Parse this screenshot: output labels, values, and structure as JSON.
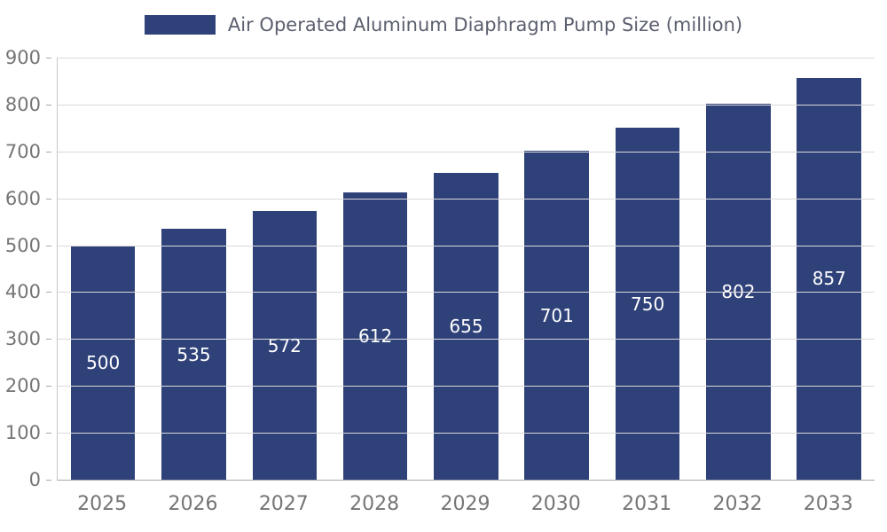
{
  "chart_data": {
    "type": "bar",
    "title": "Air Operated Aluminum Diaphragm Pump Size (million)",
    "categories": [
      "2025",
      "2026",
      "2027",
      "2028",
      "2029",
      "2030",
      "2031",
      "2032",
      "2033"
    ],
    "values": [
      500,
      535,
      572,
      612,
      655,
      701,
      750,
      802,
      857
    ],
    "xlabel": "",
    "ylabel": "",
    "ylim": [
      0,
      900
    ],
    "ytick_step": 100,
    "grid": true,
    "legend_position": "top",
    "colors": {
      "bar": "#2F4179",
      "bar_value_label": "#ffffff",
      "axis_text": "#757575",
      "title_text": "#5b5f6e",
      "gridline": "#d9d9d9"
    }
  }
}
